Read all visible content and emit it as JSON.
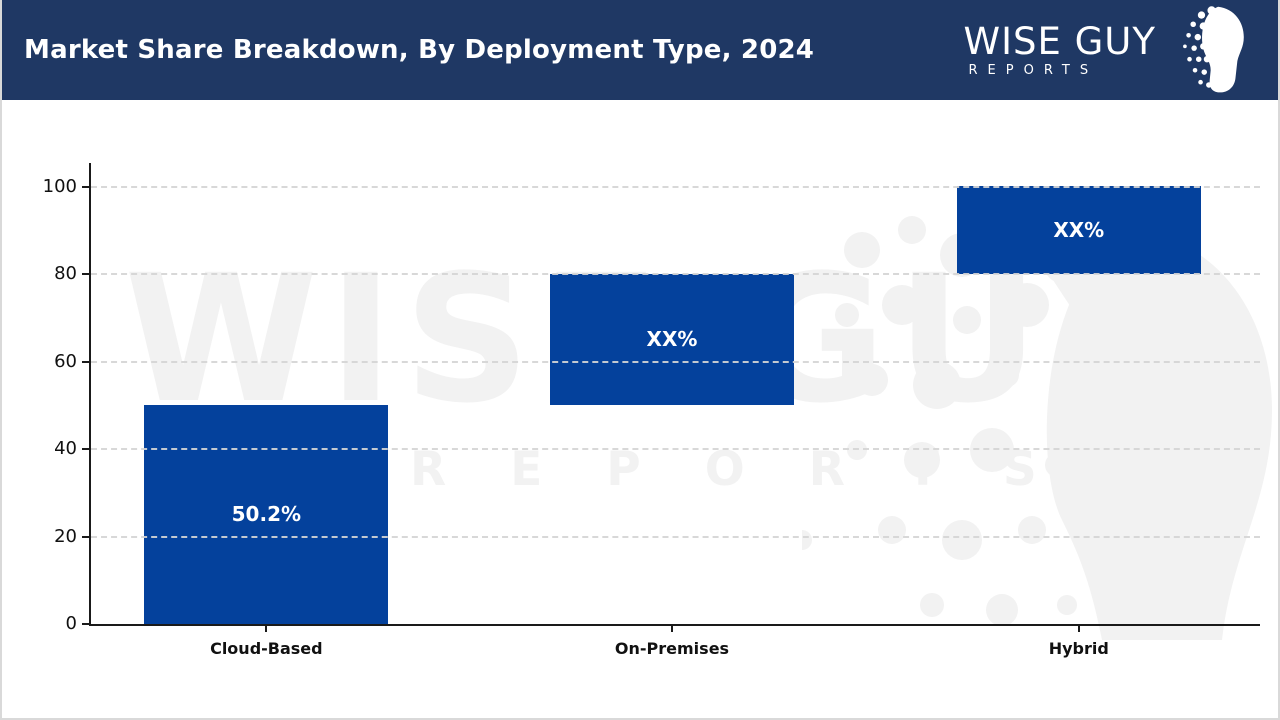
{
  "header": {
    "title": "Market Share Breakdown, By Deployment Type, 2024",
    "logo": {
      "brand": "WISE GUY",
      "sub": "REPORTS"
    }
  },
  "watermark": {
    "brand": "WISE GUY",
    "sub": "REPORTS"
  },
  "chart_data": {
    "type": "bar",
    "subtype": "waterfall-floating-segments",
    "title": "Market Share Breakdown, By Deployment Type, 2024",
    "categories": [
      "Cloud-Based",
      "On-Premises",
      "Hybrid"
    ],
    "bars": [
      {
        "category": "Cloud-Based",
        "start": 0,
        "end": 50.2,
        "value_label": "50.2%"
      },
      {
        "category": "On-Premises",
        "start": 50.2,
        "end": 80.2,
        "value_label": "XX%"
      },
      {
        "category": "Hybrid",
        "start": 80.2,
        "end": 100.2,
        "value_label": "XX%"
      }
    ],
    "xlabel": "",
    "ylabel": "",
    "yticks": [
      0,
      20,
      40,
      60,
      80,
      100
    ],
    "ylim": [
      0,
      105
    ],
    "grid": "horizontal-dashed",
    "legend": "none",
    "bar_color": "#04419c",
    "bar_label_color": "#ffffff"
  },
  "colors": {
    "header_bg": "#1f3864",
    "header_text": "#ffffff",
    "bar": "#04419c",
    "grid": "#d9d9d9",
    "axis": "#111111",
    "watermark": "#f2f2f2",
    "page_border": "#d9d9d9"
  }
}
